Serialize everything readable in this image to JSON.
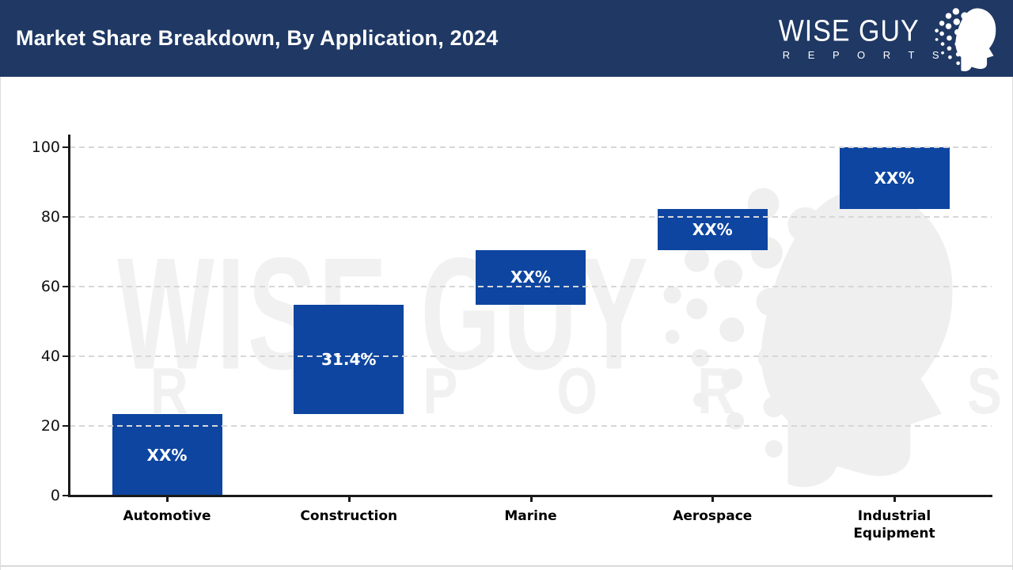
{
  "header": {
    "title": "Market Share Breakdown, By Application, 2024",
    "logo": {
      "wordmark": "WISE GUY",
      "sub": "R E P O R T S"
    }
  },
  "watermark": {
    "wordmark": "WISE GUY",
    "sub": "R E P O R T S"
  },
  "colors": {
    "header_bg": "#1f3864",
    "bar": "#0d45a0",
    "gridline": "#d7d7d7",
    "axis": "#1a1a1a",
    "bar_label_text": "#ffffff",
    "watermark": "#f1f1f1"
  },
  "chart_data": {
    "type": "bar",
    "subtype": "floating-waterfall",
    "title": "Market Share Breakdown, By Application, 2024",
    "categories": [
      "Automotive",
      "Construction",
      "Marine",
      "Aerospace",
      "Industrial Equipment"
    ],
    "segments": [
      {
        "category": "Automotive",
        "start": 0,
        "end": 23.4,
        "value": 23.4,
        "label": "XX%"
      },
      {
        "category": "Construction",
        "start": 23.4,
        "end": 54.8,
        "value": 31.4,
        "label": "31.4%"
      },
      {
        "category": "Marine",
        "start": 54.8,
        "end": 70.5,
        "value": 15.7,
        "label": "XX%"
      },
      {
        "category": "Aerospace",
        "start": 70.5,
        "end": 82.3,
        "value": 11.8,
        "label": "XX%"
      },
      {
        "category": "Industrial Equipment",
        "start": 82.3,
        "end": 100,
        "value": 17.7,
        "label": "XX%"
      }
    ],
    "yticks": [
      0,
      20,
      40,
      60,
      80,
      100
    ],
    "ylim": [
      0,
      100
    ],
    "xlabel": "",
    "ylabel": "",
    "grid": "horizontal-dashed",
    "legend": "none"
  }
}
